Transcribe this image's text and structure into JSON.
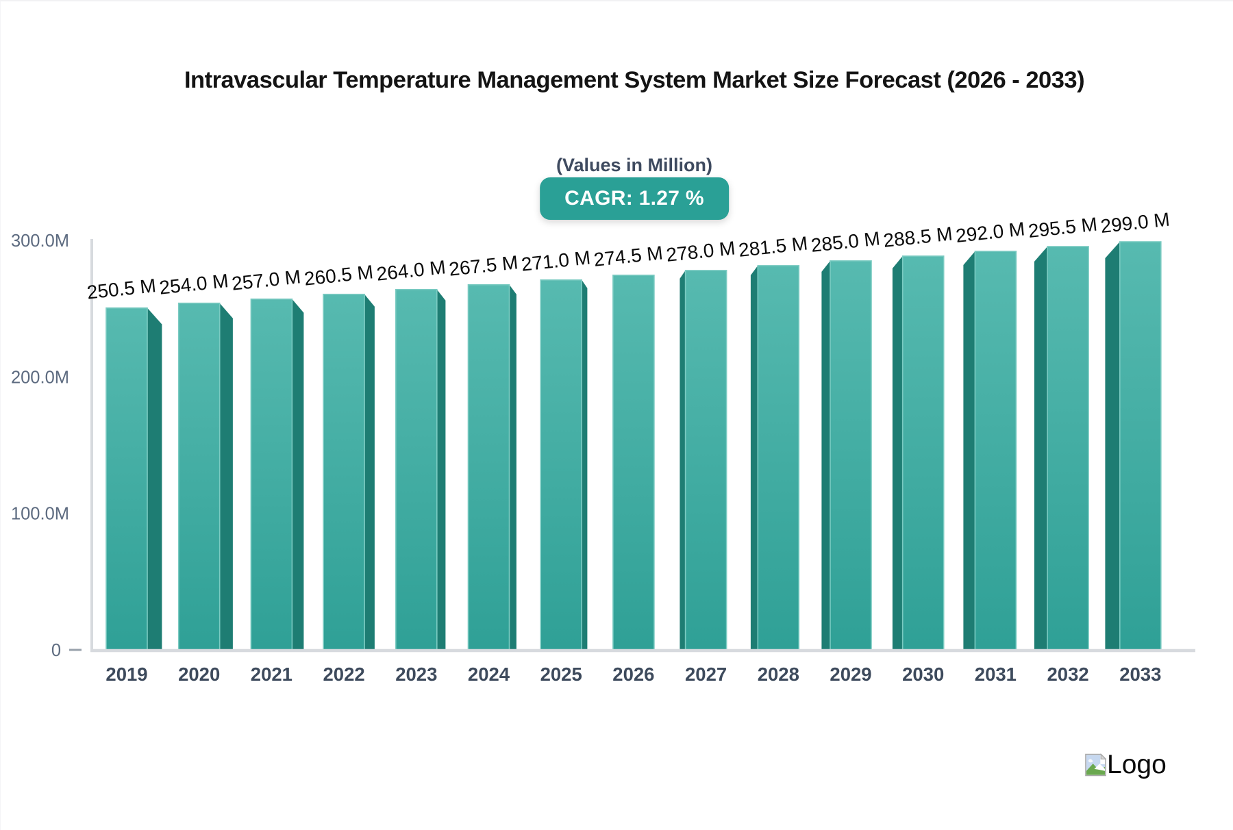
{
  "chart_data": {
    "type": "bar",
    "variant": "3d-column",
    "title": "Intravascular Temperature Management System Market Size Forecast (2026 - 2033)",
    "subtitle": "(Values in Million)",
    "badge": "CAGR: 1.27 %",
    "categories": [
      "2019",
      "2020",
      "2021",
      "2022",
      "2023",
      "2024",
      "2025",
      "2026",
      "2027",
      "2028",
      "2029",
      "2030",
      "2031",
      "2032",
      "2033"
    ],
    "values": [
      250.5,
      254.0,
      257.0,
      260.5,
      264.0,
      267.5,
      271.0,
      274.5,
      278.0,
      281.5,
      285.0,
      288.5,
      292.0,
      295.5,
      299.0
    ],
    "value_labels": [
      "250.5 M",
      "254.0 M",
      "257.0 M",
      "260.5 M",
      "264.0 M",
      "267.5 M",
      "271.0 M",
      "274.5 M",
      "278.0 M",
      "281.5 M",
      "285.0 M",
      "288.5 M",
      "292.0 M",
      "295.5 M",
      "299.0 M"
    ],
    "ylim": [
      0,
      300
    ],
    "y_ticks": [
      {
        "value": 0,
        "label": "0",
        "dash": true
      },
      {
        "value": 100,
        "label": "100.0M",
        "dash": false
      },
      {
        "value": 200,
        "label": "200.0M",
        "dash": false
      },
      {
        "value": 300,
        "label": "300.0M",
        "dash": false
      }
    ],
    "xlabel": "",
    "ylabel": "",
    "grid": false,
    "legend": "none",
    "colors": {
      "bar_front_top": "#57bab0",
      "bar_front_bottom": "#2fa096",
      "bar_side": "#1e7d73",
      "bar_stroke": "#7bcbc2",
      "axis_line": "#d7dade",
      "tick_dash": "#98a1ab",
      "tick_label": "#5d6b80",
      "category_label": "#3d4a5c",
      "value_label": "#0b0b0b",
      "badge_bg": "#2aa096",
      "badge_text": "#ffffff",
      "subtitle_text": "#3e4a5f",
      "title_text": "#141414"
    }
  },
  "footer": {
    "logo_text": "Logo",
    "logo_icon": "broken-image-icon"
  }
}
